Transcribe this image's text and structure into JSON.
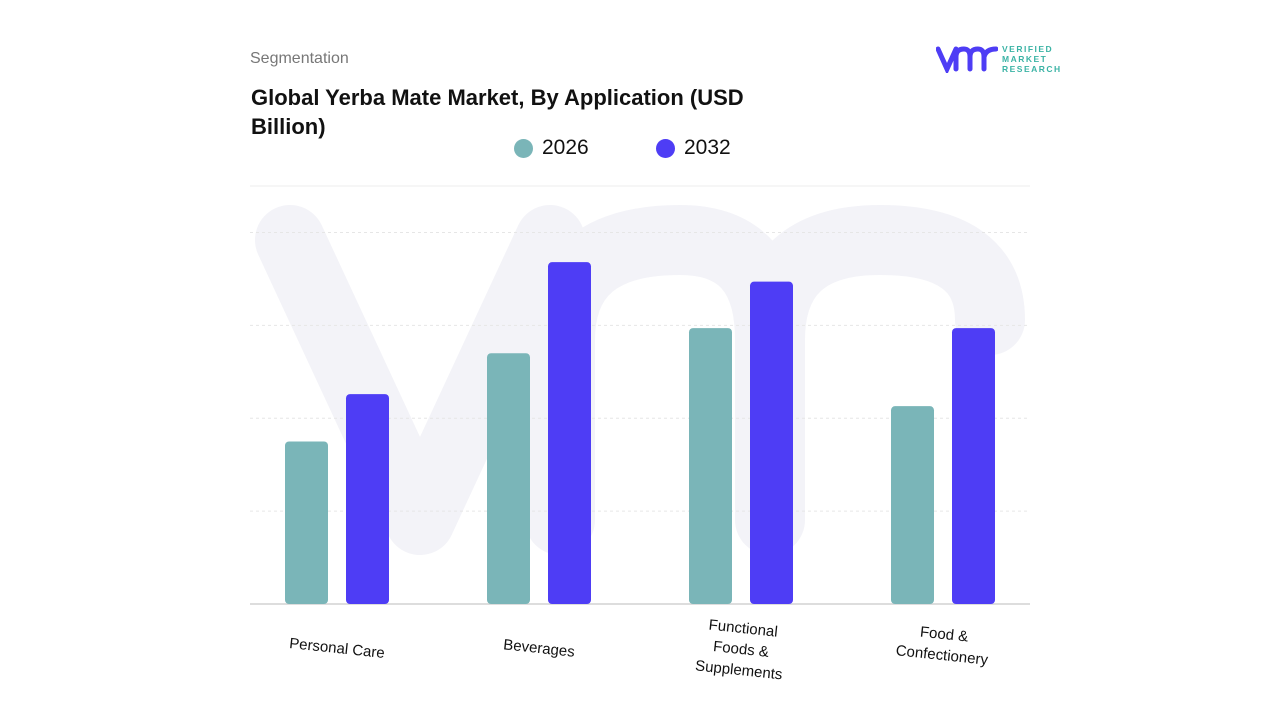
{
  "header": {
    "segment_label": "Segmentation",
    "title": "Global Yerba Mate Market, By Application (USD Billion)"
  },
  "logo": {
    "line1": "VERIFIED",
    "line2": "MARKET",
    "line3": "RESEARCH",
    "mark": "vmr"
  },
  "chart_data": {
    "type": "bar",
    "title": "Global Yerba Mate Market, By Application (USD Billion)",
    "categories": [
      "Personal Care",
      "Beverages",
      "Functional\nFoods &\nSupplements",
      "Food &\nConfectionery"
    ],
    "series": [
      {
        "name": "2026",
        "color": "#7ab5b8",
        "values": [
          1.75,
          2.7,
          2.97,
          2.13
        ]
      },
      {
        "name": "2032",
        "color": "#4e3df5",
        "values": [
          2.26,
          3.68,
          3.47,
          2.97
        ]
      }
    ],
    "ylim": [
      0,
      4.5
    ],
    "grid": true,
    "legend": "top-center",
    "xlabel": "",
    "ylabel": ""
  }
}
